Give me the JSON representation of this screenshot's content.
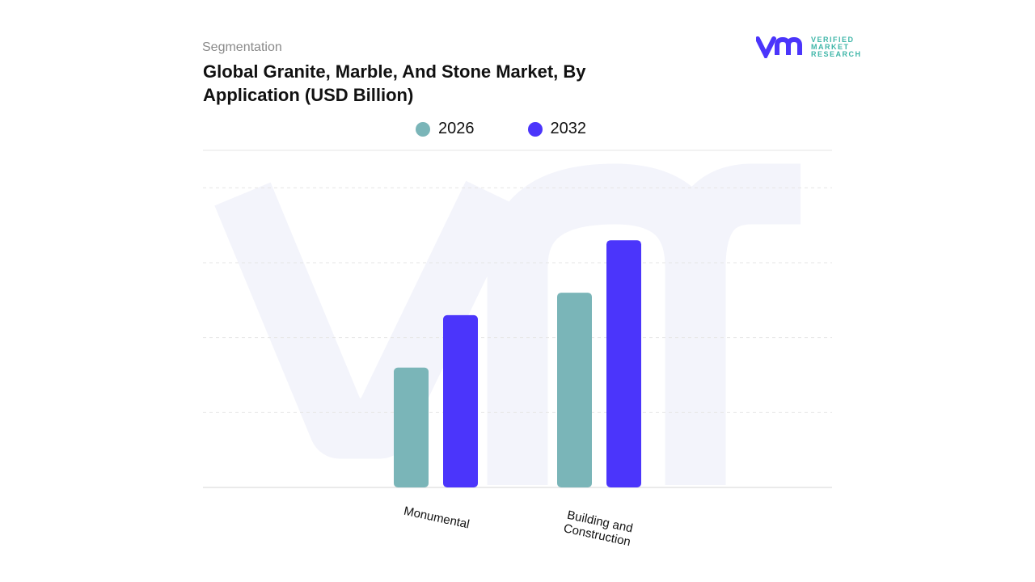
{
  "header": {
    "subtitle": "Segmentation",
    "title": "Global Granite, Marble, And Stone Market, By Application (USD Billion)"
  },
  "logo": {
    "text": [
      "VERIFIED",
      "MARKET",
      "RESEARCH"
    ],
    "mark": "vmr"
  },
  "chart_data": {
    "type": "bar",
    "title": "Global Granite, Marble, And Stone Market, By Application (USD Billion)",
    "categories": [
      "Monumental",
      "Building and Construction"
    ],
    "series": [
      {
        "name": "2026",
        "color": "#7ab5b8",
        "values": [
          1.6,
          2.6
        ]
      },
      {
        "name": "2032",
        "color": "#4b35fb",
        "values": [
          2.3,
          3.3
        ]
      }
    ],
    "ylim": [
      0,
      4.5
    ],
    "grid": true,
    "legend": "top-center",
    "xlabel": "",
    "ylabel": ""
  }
}
